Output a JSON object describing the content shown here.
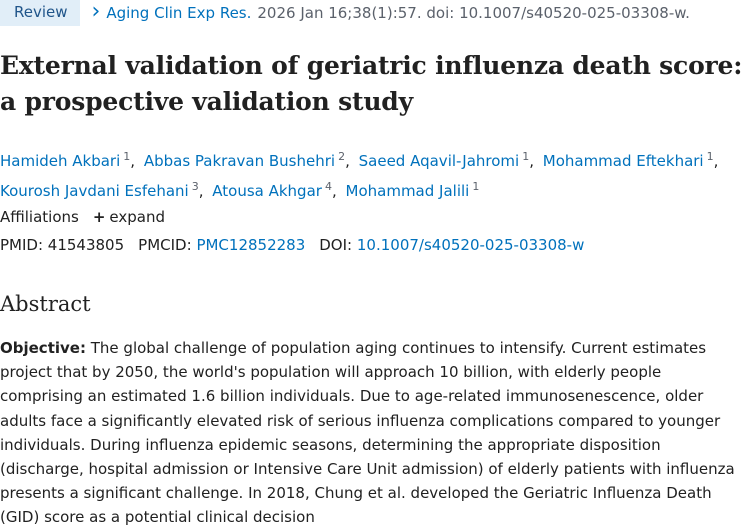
{
  "header": {
    "badge": "Review",
    "journal": "Aging Clin Exp Res.",
    "citation": "2026 Jan 16;38(1):57. doi: 10.1007/s40520-025-03308-w."
  },
  "article": {
    "title": "External validation of geriatric influenza death score: a prospective validation study",
    "authors": [
      {
        "name": "Hamideh Akbari",
        "aff": "1"
      },
      {
        "name": "Abbas Pakravan Bushehri",
        "aff": "2"
      },
      {
        "name": "Saeed Aqavil-Jahromi",
        "aff": "1"
      },
      {
        "name": "Mohammad Eftekhari",
        "aff": "1"
      },
      {
        "name": "Kourosh Javdani Esfehani",
        "aff": "3"
      },
      {
        "name": "Atousa Akhgar",
        "aff": "4"
      },
      {
        "name": "Mohammad Jalili",
        "aff": "1"
      }
    ],
    "affiliations": {
      "label": "Affiliations",
      "action": "expand"
    },
    "ids": [
      {
        "label": "PMID:",
        "value": "41543805"
      },
      {
        "label": "PMCID:",
        "value": "PMC12852283"
      },
      {
        "label": "DOI:",
        "value": "10.1007/s40520-025-03308-w"
      }
    ]
  },
  "abstract": {
    "heading": "Abstract",
    "label": "Objective:",
    "text": "The global challenge of population aging continues to intensify. Current estimates project that by 2050, the world's population will approach 10 billion, with elderly people comprising an estimated 1.6 billion individuals. Due to age-related immunosenescence, older adults face a significantly elevated risk of serious influenza complications compared to younger individuals. During influenza epidemic seasons, determining the appropriate disposition (discharge, hospital admission or Intensive Care Unit admission) of elderly patients with influenza presents a significant challenge. In 2018, Chung et al. developed the Geriatric Influenza Death (GID) score as a potential clinical decision"
  }
}
